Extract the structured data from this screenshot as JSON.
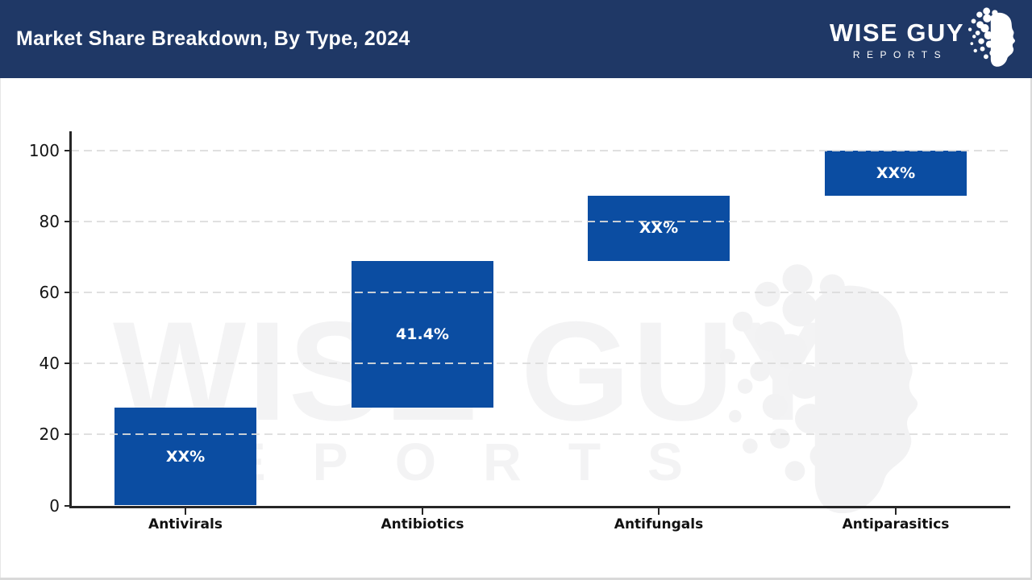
{
  "header": {
    "title": "Market Share Breakdown, By Type, 2024",
    "logo": {
      "line1": "WISE GUY",
      "line2": "REPORTS"
    }
  },
  "watermark": {
    "line1": "WISE GUY",
    "line2": "REPORTS"
  },
  "colors": {
    "header_bg": "#1f3866",
    "bar": "#0b4da2",
    "bar_label_text": "#ffffff",
    "title_text": "#ffffff",
    "axis": "#262626",
    "gridline": "#dcdcdc",
    "watermark": "#f3f3f4"
  },
  "chart_data": {
    "type": "bar",
    "subtype": "waterfall",
    "title": "Market Share Breakdown, By Type, 2024",
    "categories": [
      "Antivirals",
      "Antibiotics",
      "Antifungals",
      "Antiparasitics"
    ],
    "bars": [
      {
        "category": "Antivirals",
        "start": 0,
        "end": 27.5,
        "label": "XX%"
      },
      {
        "category": "Antibiotics",
        "start": 27.5,
        "end": 68.9,
        "label": "41.4%"
      },
      {
        "category": "Antifungals",
        "start": 68.9,
        "end": 87.2,
        "label": "XX%"
      },
      {
        "category": "Antiparasitics",
        "start": 87.2,
        "end": 100,
        "label": "XX%"
      }
    ],
    "bar_labels": [
      "XX%",
      "41.4%",
      "XX%",
      "XX%"
    ],
    "xlabel": "",
    "ylabel": "",
    "ylim": [
      0,
      100
    ],
    "yticks": [
      0,
      20,
      40,
      60,
      80,
      100
    ],
    "grid": "horizontal-dashed",
    "legend": "none"
  }
}
